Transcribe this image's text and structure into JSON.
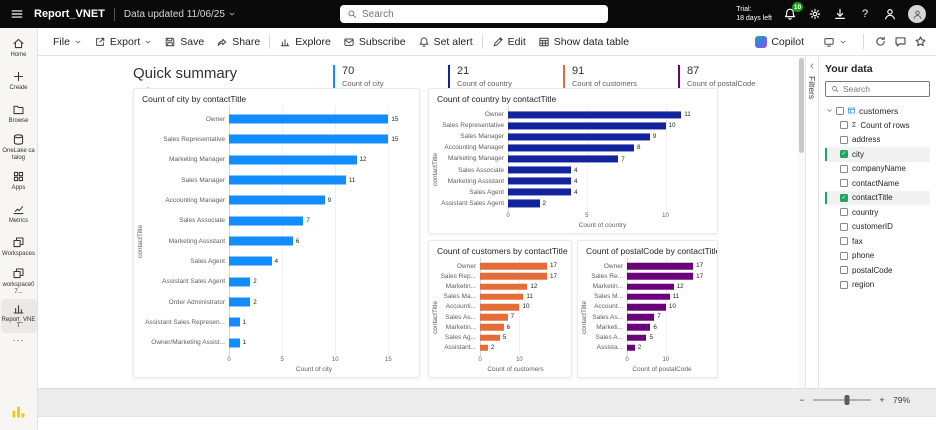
{
  "topbar": {
    "app_tab": "Report_VNET",
    "data_updated": "Data updated 11/06/25",
    "search_placeholder": "Search",
    "trial_line1": "Trial:",
    "trial_line2": "18 days left",
    "notification_count": "10"
  },
  "rail": {
    "items": [
      {
        "label": "Home"
      },
      {
        "label": "Create"
      },
      {
        "label": "Browse"
      },
      {
        "label": "OneLake catalog"
      },
      {
        "label": "Apps"
      },
      {
        "label": "Metrics"
      },
      {
        "label": "Workspaces"
      },
      {
        "label": "workspace07..."
      },
      {
        "label": "Report_VNET"
      }
    ]
  },
  "toolbar": {
    "file": "File",
    "export": "Export",
    "save": "Save",
    "share": "Share",
    "explore": "Explore",
    "subscribe": "Subscribe",
    "set_alert": "Set alert",
    "edit": "Edit",
    "show_data_table": "Show data table",
    "copilot": "Copilot"
  },
  "report": {
    "title": "Quick summary",
    "subtitle": "customers",
    "kpis": [
      {
        "value": "70",
        "label": "Count of city",
        "color": "#118DFF"
      },
      {
        "value": "21",
        "label": "Count of country",
        "color": "#12239E"
      },
      {
        "value": "91",
        "label": "Count of customers",
        "color": "#E66C37"
      },
      {
        "value": "87",
        "label": "Count of postalCode",
        "color": "#6B007B"
      }
    ]
  },
  "chart_data": [
    {
      "type": "bar",
      "orientation": "horizontal",
      "title": "Count of city by contactTitle",
      "ylabel": "contactTitle",
      "xlabel": "Count of city",
      "color": "#118DFF",
      "xlim": [
        0,
        16
      ],
      "xticks": [
        0,
        5,
        10,
        15
      ],
      "grid": true,
      "categories": [
        "Owner",
        "Sales Representative",
        "Marketing Manager",
        "Sales Manager",
        "Accounting Manager",
        "Sales Associate",
        "Marketing Assistant",
        "Sales Agent",
        "Assistant Sales Agent",
        "Order Administrator",
        "Assistant Sales Represen...",
        "Owner/Marketing Assist..."
      ],
      "values": [
        15,
        15,
        12,
        11,
        9,
        7,
        6,
        4,
        2,
        2,
        1,
        1
      ]
    },
    {
      "type": "bar",
      "orientation": "horizontal",
      "title": "Count of country by contactTitle",
      "ylabel": "contactTitle",
      "xlabel": "Count of country",
      "color": "#12239E",
      "xlim": [
        0,
        12
      ],
      "xticks": [
        0,
        5,
        10
      ],
      "grid": true,
      "categories": [
        "Owner",
        "Sales Representative",
        "Sales Manager",
        "Accounting Manager",
        "Marketing Manager",
        "Sales Associate",
        "Marketing Assistant",
        "Sales Agent",
        "Assistant Sales Agent"
      ],
      "values": [
        11,
        10,
        9,
        8,
        7,
        4,
        4,
        4,
        2
      ]
    },
    {
      "type": "bar",
      "orientation": "horizontal",
      "title": "Count of customers by contactTitle",
      "ylabel": "contactTitle",
      "xlabel": "Count of customers",
      "color": "#E66C37",
      "xlim": [
        0,
        18
      ],
      "xticks": [
        0,
        10
      ],
      "grid": true,
      "categories": [
        "Owner",
        "Sales Rep...",
        "Marketin...",
        "Sales Ma...",
        "Accounti...",
        "Sales As...",
        "Marketin...",
        "Sales Ag...",
        "Assistant..."
      ],
      "values": [
        17,
        17,
        12,
        11,
        10,
        7,
        6,
        5,
        2
      ]
    },
    {
      "type": "bar",
      "orientation": "horizontal",
      "title": "Count of postalCode by contactTitle",
      "ylabel": "contactTitle",
      "xlabel": "Count of postalCode",
      "color": "#6B007B",
      "xlim": [
        0,
        18
      ],
      "xticks": [
        0,
        10
      ],
      "grid": true,
      "categories": [
        "Owner",
        "Sales Re...",
        "Marketin...",
        "Sales M...",
        "Account...",
        "Sales As...",
        "Marketi...",
        "Sales A...",
        "Assista..."
      ],
      "values": [
        17,
        17,
        12,
        11,
        10,
        7,
        6,
        5,
        2
      ]
    }
  ],
  "filters_panel": {
    "label": "Filters"
  },
  "data_panel": {
    "title": "Your data",
    "search_placeholder": "Search",
    "table": {
      "name": "customers"
    },
    "checked_color": "#21A366",
    "fields": [
      {
        "label": "Count of rows",
        "checked": false,
        "icon": "sum"
      },
      {
        "label": "address",
        "checked": false
      },
      {
        "label": "city",
        "checked": true
      },
      {
        "label": "companyName",
        "checked": false
      },
      {
        "label": "contactName",
        "checked": false
      },
      {
        "label": "contactTitle",
        "checked": true
      },
      {
        "label": "country",
        "checked": false
      },
      {
        "label": "customerID",
        "checked": false
      },
      {
        "label": "fax",
        "checked": false
      },
      {
        "label": "phone",
        "checked": false
      },
      {
        "label": "postalCode",
        "checked": false
      },
      {
        "label": "region",
        "checked": false
      }
    ]
  },
  "zoom": {
    "minus": "−",
    "plus": "+",
    "level": "79%"
  },
  "icons": {
    "question": "?",
    "more": "···",
    "sum": "Σ",
    "checkmark": "✓"
  }
}
